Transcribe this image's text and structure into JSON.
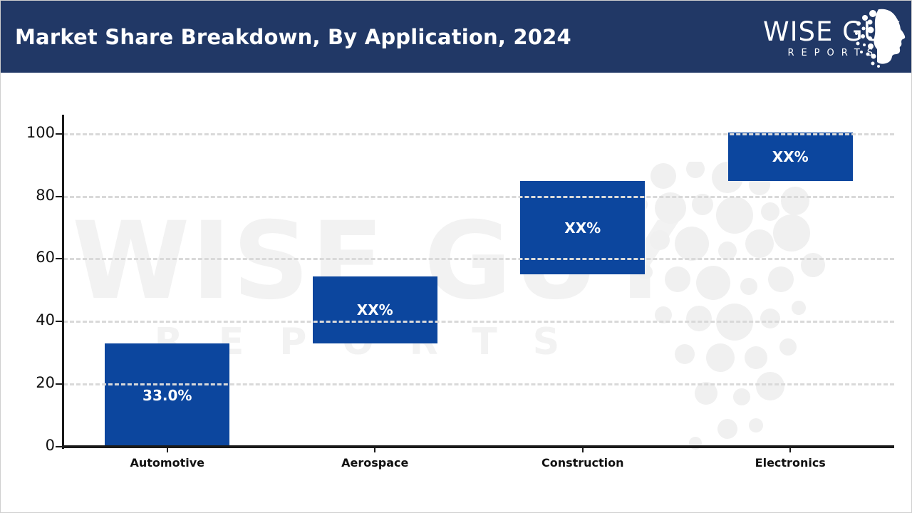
{
  "header": {
    "title": "Market Share Breakdown, By Application, 2024",
    "bg_color": "#213866",
    "logo": {
      "line1": "WISE GUY",
      "line2": "REPORTS"
    }
  },
  "watermark": {
    "line1": "WISE GUY",
    "line2": "REPORTS"
  },
  "chart_data": {
    "type": "bar",
    "subtype": "waterfall-floating-bars",
    "title": "Market Share Breakdown, By Application, 2024",
    "categories": [
      "Automotive",
      "Aerospace",
      "Construction",
      "Electronics"
    ],
    "series": [
      {
        "name": "Market Share (%)",
        "ranges": [
          [
            0,
            33
          ],
          [
            33,
            54.5
          ],
          [
            55,
            85
          ],
          [
            85,
            100.3
          ]
        ],
        "labels": [
          "33.0%",
          "XX%",
          "XX%",
          "XX%"
        ]
      }
    ],
    "xlabel": "",
    "ylabel": "",
    "ylim": [
      0,
      106
    ],
    "yticks": [
      0,
      20,
      40,
      60,
      80,
      100
    ],
    "grid": "horizontal-dashed-over-bars",
    "legend": "none",
    "bar_color": "#0c469e",
    "bar_label_color": "#ffffff",
    "grid_color": "#d9d9d9",
    "axis_color": "#1a1a1a"
  }
}
